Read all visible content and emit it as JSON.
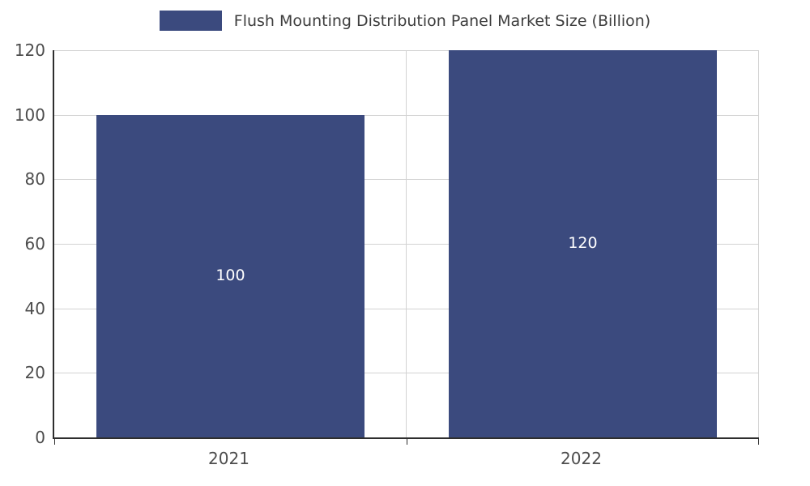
{
  "chart_data": {
    "type": "bar",
    "title": "Flush Mounting Distribution Panel Market Size (Billion)",
    "categories": [
      "2021",
      "2022"
    ],
    "values": [
      100,
      120
    ],
    "value_labels": [
      "100",
      "120"
    ],
    "xlabel": "",
    "ylabel": "",
    "ylim": [
      0,
      120
    ],
    "yticks": [
      0,
      20,
      40,
      60,
      80,
      100,
      120
    ],
    "grid": true,
    "legend": {
      "position": "top",
      "label": "Flush Mounting Distribution Panel Market Size (Billion)"
    },
    "colors": {
      "bar": "#3B4A7E",
      "value_label": "#FFFFFF",
      "grid": "#D2D2D2",
      "axis": "#2E2E2E",
      "tick_label": "#4D4D4D"
    }
  }
}
